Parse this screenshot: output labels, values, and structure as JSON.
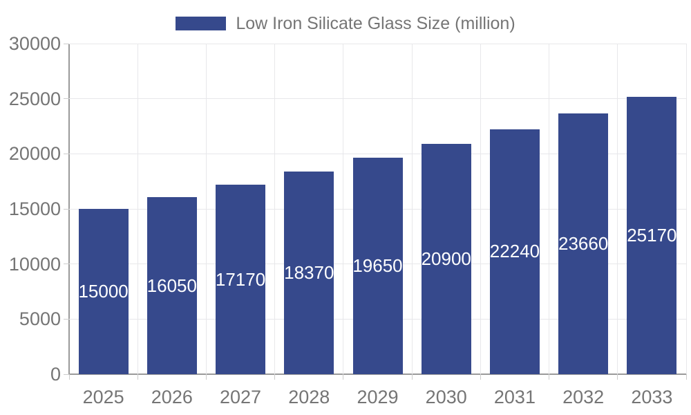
{
  "chart_data": {
    "type": "bar",
    "title": "",
    "legend_label": "Low Iron Silicate Glass Size (million)",
    "series_name": "Low Iron Silicate Glass Size (million)",
    "categories": [
      "2025",
      "2026",
      "2027",
      "2028",
      "2029",
      "2030",
      "2031",
      "2032",
      "2033"
    ],
    "values": [
      15000,
      16050,
      17170,
      18370,
      19650,
      20900,
      22240,
      23660,
      25170
    ],
    "data_labels_visible": true,
    "xlabel": "",
    "ylabel": "",
    "ylim": [
      0,
      30000
    ],
    "yticks": [
      0,
      5000,
      10000,
      15000,
      20000,
      25000,
      30000
    ],
    "grid": true,
    "legend_position": "top-center",
    "colors": {
      "bar_fill": "#36498C",
      "bar_label_text": "#ffffff",
      "axis_line": "#9a9a9a",
      "tick_mark": "#cccccc",
      "gridline": "#e7e7ea",
      "axis_text": "#757575",
      "legend_text": "#757575",
      "background": "#ffffff"
    }
  }
}
